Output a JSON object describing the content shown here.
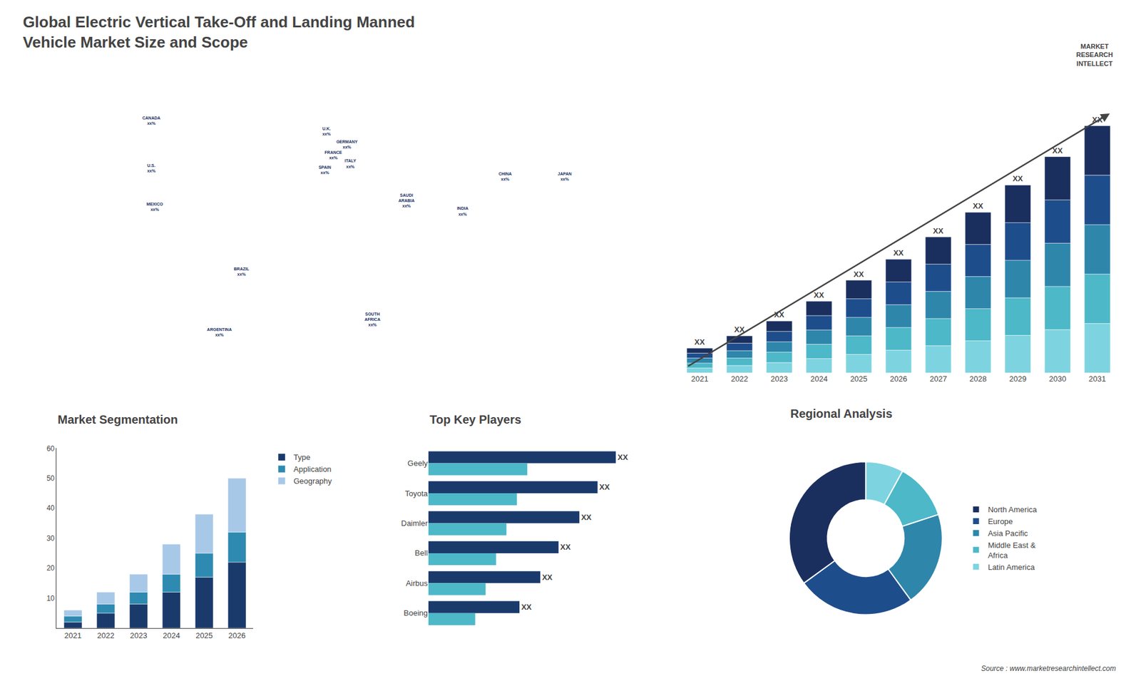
{
  "chart_data": [
    {
      "type": "scatter",
      "title": "Global Electric Vertical Take-Off and Landing Manned\nVehicle Market Size and Scope",
      "annotations": [
        "MARKET\nRESEARCH\nINTELLECT",
        "Source : www.marketresearchintellect.com"
      ],
      "x": [
        -105,
        -105,
        -103,
        -52,
        -65,
        -2,
        2,
        -3,
        10,
        12,
        45,
        25,
        103,
        78,
        138
      ],
      "values": [
        62,
        40,
        22,
        -8,
        -36,
        57,
        46,
        39,
        51,
        42,
        25,
        -30,
        36,
        20,
        36
      ],
      "labels": [
        "CANADA\nxx%",
        "U.S.\nxx%",
        "MEXICO\nxx%",
        "BRAZIL\nxx%",
        "ARGENTINA\nxx%",
        "U.K.\nxx%",
        "FRANCE\nxx%",
        "SPAIN\nxx%",
        "GERMANY\nxx%",
        "ITALY\nxx%",
        "SAUDI\nARABIA\nxx%",
        "SOUTH\nAFRICA\nxx%",
        "CHINA\nxx%",
        "INDIA\nxx%",
        "JAPAN\nxx%"
      ],
      "color": "#1a2f5e",
      "marker": "none",
      "xlim": [
        -180,
        180
      ],
      "ylim": [
        -60,
        85
      ],
      "tick_labels": false
    },
    {
      "type": "bar",
      "stacked": true,
      "categories": [
        "2021",
        "2022",
        "2023",
        "2024",
        "2025",
        "2026",
        "2027",
        "2028",
        "2029",
        "2030",
        "2031"
      ],
      "series": [
        {
          "color": "#7dd4e0",
          "values": [
            0.4,
            0.6,
            0.84,
            1.16,
            1.5,
            1.84,
            2.2,
            2.6,
            3.04,
            3.5,
            4
          ]
        },
        {
          "color": "#4db8c8",
          "values": [
            0.4,
            0.6,
            0.84,
            1.16,
            1.5,
            1.84,
            2.2,
            2.6,
            3.04,
            3.5,
            4
          ]
        },
        {
          "color": "#2e86ab",
          "values": [
            0.4,
            0.6,
            0.84,
            1.16,
            1.5,
            1.84,
            2.2,
            2.6,
            3.04,
            3.5,
            4
          ]
        },
        {
          "color": "#1e4d8c",
          "values": [
            0.4,
            0.6,
            0.84,
            1.16,
            1.5,
            1.84,
            2.2,
            2.6,
            3.04,
            3.5,
            4
          ]
        },
        {
          "color": "#1a2f5e",
          "values": [
            0.4,
            0.6,
            0.84,
            1.16,
            1.5,
            1.84,
            2.2,
            2.6,
            3.04,
            3.5,
            4
          ],
          "value_labels": [
            "XX",
            "XX",
            "XX",
            "XX",
            "XX",
            "XX",
            "XX",
            "XX",
            "XX",
            "XX",
            "XX"
          ]
        }
      ],
      "data_labels": true,
      "ylim": [
        0,
        23
      ],
      "tick_labels": "x",
      "grid": false
    },
    {
      "type": "bar",
      "title": "Market Segmentation",
      "stacked": true,
      "categories": [
        "2021",
        "2022",
        "2023",
        "2024",
        "2025",
        "2026"
      ],
      "series": [
        {
          "name": "Type",
          "color": "#1a3a6b",
          "values": [
            2,
            5,
            8,
            12,
            17,
            22
          ]
        },
        {
          "name": "Application",
          "color": "#2e8ab0",
          "values": [
            2,
            3,
            4,
            6,
            8,
            10
          ]
        },
        {
          "name": "Geography",
          "color": "#a8c8e8",
          "values": [
            2,
            4,
            6,
            10,
            13,
            18
          ]
        }
      ],
      "ylim": [
        0,
        60
      ],
      "yticks": [
        10,
        20,
        30,
        40,
        50,
        60
      ],
      "grid": false,
      "legend": "right"
    },
    {
      "type": "bar",
      "title": "Top Key Players",
      "orientation": "horizontal",
      "categories": [
        "Geely",
        "Toyota",
        "Daimler",
        "Bell",
        "Airbus",
        "Boeing"
      ],
      "series": [
        {
          "color": "#1a3a6b",
          "values": [
            0.72,
            0.65,
            0.58,
            0.5,
            0.43,
            0.35
          ],
          "value_labels": [
            "XX",
            "XX",
            "XX",
            "XX",
            "XX",
            "XX"
          ]
        },
        {
          "color": "#4db8c8",
          "values": [
            0.38,
            0.34,
            0.3,
            0.26,
            0.22,
            0.18
          ]
        }
      ],
      "data_labels": true,
      "xlim": [
        0,
        1.05
      ],
      "tick_labels": "y",
      "grid": false
    },
    {
      "type": "donut",
      "title": "Regional Analysis",
      "labels": [
        "Latin America",
        "Middle East &\nAfrica",
        "Asia Pacific",
        "Europe",
        "North America"
      ],
      "values": [
        8,
        12,
        20,
        25,
        35
      ],
      "colors": [
        "#7dd4e0",
        "#4db8c8",
        "#2e86ab",
        "#1e4d8c",
        "#1a2f5e"
      ],
      "legend": "right",
      "data_labels": false
    }
  ]
}
